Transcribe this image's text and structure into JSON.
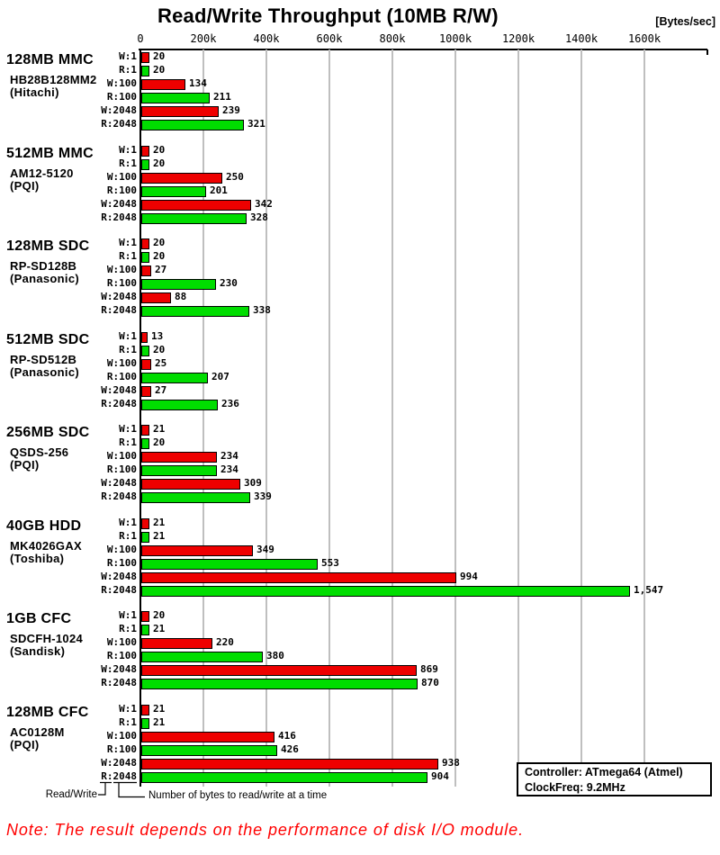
{
  "title": "Read/Write Throughput (10MB R/W)",
  "axis_unit": "[Bytes/sec]",
  "legend": {
    "controller": "Controller: ATmega64 (Atmel)",
    "clockfreq": "ClockFreq: 9.2MHz"
  },
  "footnotes": {
    "read_write": "Read/Write",
    "bytes_at_a_time": "Number of bytes to read/write at a time"
  },
  "note": "Note: The result depends on the performance of disk I/O module.",
  "colors": {
    "write_bar": "#ee0000",
    "read_bar": "#00dd00",
    "bar_border": "#000000",
    "gridline": "#bfbfbf",
    "note_text": "#ff0000"
  },
  "chart_data": {
    "type": "bar",
    "orientation": "horizontal",
    "title": "Read/Write Throughput (10MB R/W)",
    "value_unit": "Bytes/sec",
    "bar_label_unit": "kBytes/sec (values shown are ×1000 Bytes/sec)",
    "axis_ticks": [
      "0",
      "200k",
      "400k",
      "600k",
      "800k",
      "1000k",
      "1200k",
      "1400k",
      "1600k"
    ],
    "xlim_k": [
      0,
      1800
    ],
    "tick_interval_k": 200,
    "grid": true,
    "categories": [
      "W:1",
      "R:1",
      "W:100",
      "R:100",
      "W:2048",
      "R:2048"
    ],
    "series_colors": {
      "W": "write_bar",
      "R": "read_bar"
    },
    "groups": [
      {
        "name": "128MB MMC",
        "model": "HB28B128MM2",
        "maker": "(Hitachi)",
        "values_k": [
          20,
          20,
          134,
          211,
          239,
          321
        ],
        "display": [
          "20",
          "20",
          "134",
          "211",
          "239",
          "321"
        ]
      },
      {
        "name": "512MB MMC",
        "model": "AM12-5120",
        "maker": "(PQI)",
        "values_k": [
          20,
          20,
          250,
          201,
          342,
          328
        ],
        "display": [
          "20",
          "20",
          "250",
          "201",
          "342",
          "328"
        ]
      },
      {
        "name": "128MB SDC",
        "model": "RP-SD128B",
        "maker": "(Panasonic)",
        "values_k": [
          20,
          20,
          27,
          230,
          88,
          338
        ],
        "display": [
          "20",
          "20",
          "27",
          "230",
          "88",
          "338"
        ]
      },
      {
        "name": "512MB SDC",
        "model": "RP-SD512B",
        "maker": "(Panasonic)",
        "values_k": [
          13,
          20,
          25,
          207,
          27,
          236
        ],
        "display": [
          "13",
          "20",
          "25",
          "207",
          "27",
          "236"
        ]
      },
      {
        "name": "256MB SDC",
        "model": "QSDS-256",
        "maker": "(PQI)",
        "values_k": [
          21,
          20,
          234,
          234,
          309,
          339
        ],
        "display": [
          "21",
          "20",
          "234",
          "234",
          "309",
          "339"
        ]
      },
      {
        "name": "40GB HDD",
        "model": "MK4026GAX",
        "maker": "(Toshiba)",
        "values_k": [
          21,
          21,
          349,
          553,
          994,
          1547
        ],
        "display": [
          "21",
          "21",
          "349",
          "553",
          "994",
          "1,547"
        ]
      },
      {
        "name": "1GB CFC",
        "model": "SDCFH-1024",
        "maker": "(Sandisk)",
        "values_k": [
          20,
          21,
          220,
          380,
          869,
          870
        ],
        "display": [
          "20",
          "21",
          "220",
          "380",
          "869",
          "870"
        ]
      },
      {
        "name": "128MB CFC",
        "model": "AC0128M",
        "maker": "(PQI)",
        "values_k": [
          21,
          21,
          416,
          426,
          938,
          904
        ],
        "display": [
          "21",
          "21",
          "416",
          "426",
          "938",
          "904"
        ]
      }
    ]
  }
}
